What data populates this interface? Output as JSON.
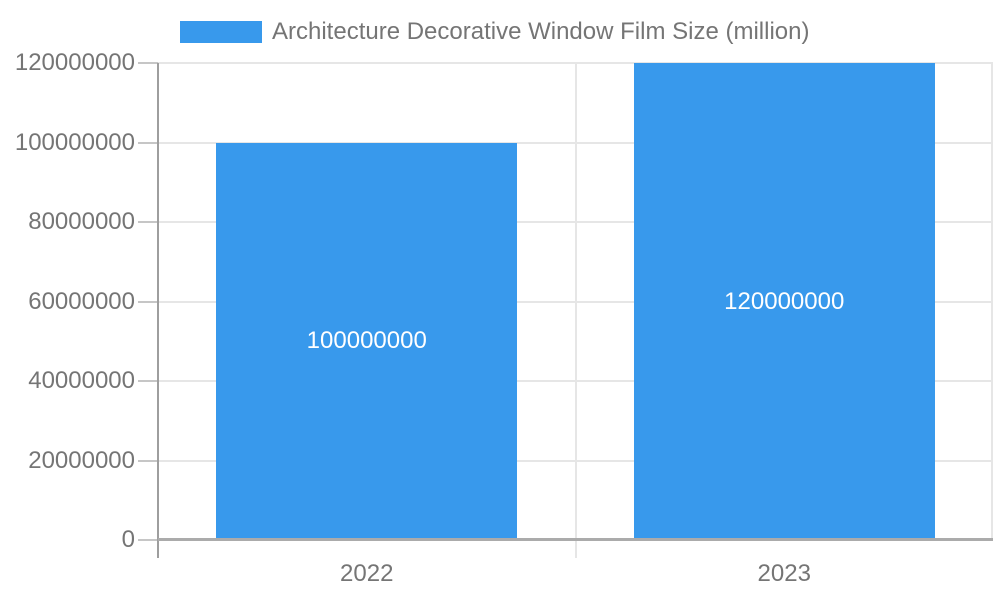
{
  "window": {
    "background": "#ffffff"
  },
  "legend": {
    "label": "Architecture Decorative Window Film Size (million)",
    "position": "top"
  },
  "chart_data": {
    "type": "bar",
    "title": "Architecture Decorative Window Film Size (million)",
    "categories": [
      "2022",
      "2023"
    ],
    "values": [
      100000000,
      120000000
    ],
    "bar_value_labels": [
      "100000000",
      "120000000"
    ],
    "yticks": [
      0,
      20000000,
      40000000,
      60000000,
      80000000,
      100000000,
      120000000
    ],
    "ytick_labels": [
      "0",
      "20000000",
      "40000000",
      "60000000",
      "80000000",
      "100000000",
      "120000000"
    ],
    "ylim": [
      0,
      120000000
    ],
    "xlabel": "",
    "ylabel": "",
    "grid": true,
    "legend_entries": [
      "Architecture Decorative Window Film Size (million)"
    ],
    "legend_position": "top",
    "colors": {
      "bar": "#3899EC",
      "bar_label_text": "#ffffff",
      "axis_text": "#757575",
      "legend_text": "#757575",
      "gridline": "#e6e6e6",
      "axis_line": "#9e9e9e",
      "baseline": "#ababab",
      "tick_mark": "#c6c6c6",
      "background": "#ffffff"
    }
  }
}
